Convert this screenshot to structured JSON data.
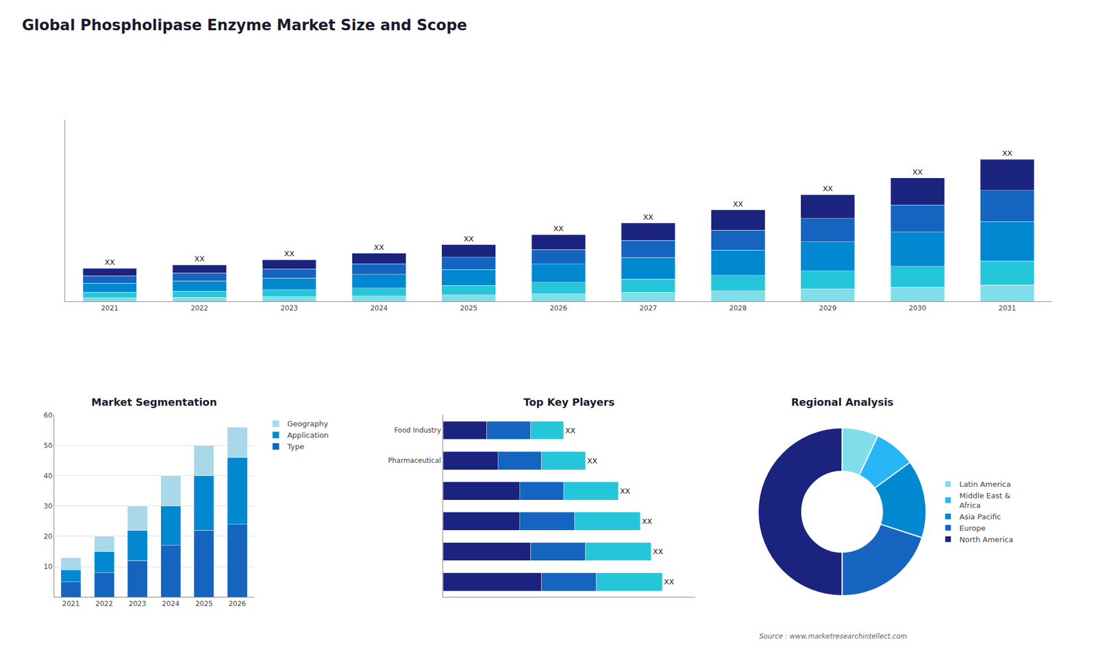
{
  "title": "Global Phospholipase Enzyme Market Size and Scope",
  "annotations": [
    "Source : www.marketresearchintellect.com"
  ],
  "chart_data": [
    {
      "type": "bar",
      "stacked": true,
      "categories": [
        "2021",
        "2022",
        "2023",
        "2024",
        "2025",
        "2026",
        "2027",
        "2028",
        "2029",
        "2030",
        "2031"
      ],
      "series": [
        {
          "color": "#80deea",
          "values": [
            1.0,
            1.1,
            1.3,
            1.5,
            1.8,
            2.1,
            2.5,
            2.9,
            3.4,
            3.9,
            4.5
          ]
        },
        {
          "color": "#26c6da",
          "values": [
            1.5,
            1.7,
            1.9,
            2.2,
            2.6,
            3.1,
            3.6,
            4.2,
            4.9,
            5.7,
            6.6
          ]
        },
        {
          "color": "#0288d1",
          "values": [
            2.5,
            2.8,
            3.2,
            3.7,
            4.3,
            5.0,
            5.9,
            6.9,
            8.0,
            9.3,
            10.7
          ]
        },
        {
          "color": "#1565c0",
          "values": [
            2.0,
            2.2,
            2.5,
            2.9,
            3.4,
            4.0,
            4.7,
            5.5,
            6.4,
            7.4,
            8.5
          ]
        },
        {
          "color": "#1a237e",
          "values": [
            2.0,
            2.2,
            2.5,
            2.9,
            3.4,
            4.0,
            4.7,
            5.5,
            6.4,
            7.4,
            8.5
          ]
        }
      ],
      "annotations": [
        "XX",
        "XX",
        "XX",
        "XX",
        "XX",
        "XX",
        "XX",
        "XX",
        "XX",
        "XX",
        "XX"
      ],
      "ylim": [
        0,
        49.664
      ],
      "tick_labels": "x",
      "grid": false
    },
    {
      "type": "bar",
      "title": "Market Segmentation",
      "stacked": true,
      "categories": [
        "2021",
        "2022",
        "2023",
        "2024",
        "2025",
        "2026"
      ],
      "series": [
        {
          "name": "Type",
          "color": "#1565c0",
          "values": [
            5,
            8,
            12,
            17,
            22,
            24
          ]
        },
        {
          "name": "Application",
          "color": "#0288d1",
          "values": [
            4,
            7,
            10,
            13,
            18,
            22
          ]
        },
        {
          "name": "Geography",
          "color": "#a8d8ea",
          "values": [
            4,
            5,
            8,
            10,
            10,
            10
          ]
        }
      ],
      "ylim": [
        0,
        60
      ],
      "yticks": [
        10,
        20,
        30,
        40,
        50,
        60
      ],
      "grid": true,
      "legend": "right"
    },
    {
      "type": "bar",
      "title": "Top Key Players",
      "orientation": "horizontal",
      "stacked": true,
      "categories": [
        null,
        null,
        null,
        null,
        "Pharmaceutical",
        "Food Industry"
      ],
      "series": [
        {
          "color": "#1a237e",
          "values": [
            4.5,
            4.0,
            3.5,
            3.5,
            2.5,
            2.0
          ]
        },
        {
          "color": "#1565c0",
          "values": [
            2.5,
            2.5,
            2.5,
            2.0,
            2.0,
            2.0
          ]
        },
        {
          "color": "#26c6da",
          "values": [
            3.0,
            3.0,
            3.0,
            2.5,
            2.0,
            1.5
          ]
        }
      ],
      "annotations": [
        "XX",
        "XX",
        "XX",
        "XX",
        "XX",
        "XX"
      ],
      "xlim": [
        0,
        11.5
      ],
      "tick_labels": "y",
      "grid": false
    },
    {
      "type": "pie",
      "title": "Regional Analysis",
      "categories": [
        "Latin America",
        "Middle East &\nAfrica",
        "Asia Pacific",
        "Europe",
        "North America"
      ],
      "values": [
        7,
        8,
        15,
        20,
        50
      ],
      "colors": [
        "#80deea",
        "#29b6f6",
        "#0288d1",
        "#1565c0",
        "#1a237e"
      ],
      "legend": "right"
    }
  ]
}
